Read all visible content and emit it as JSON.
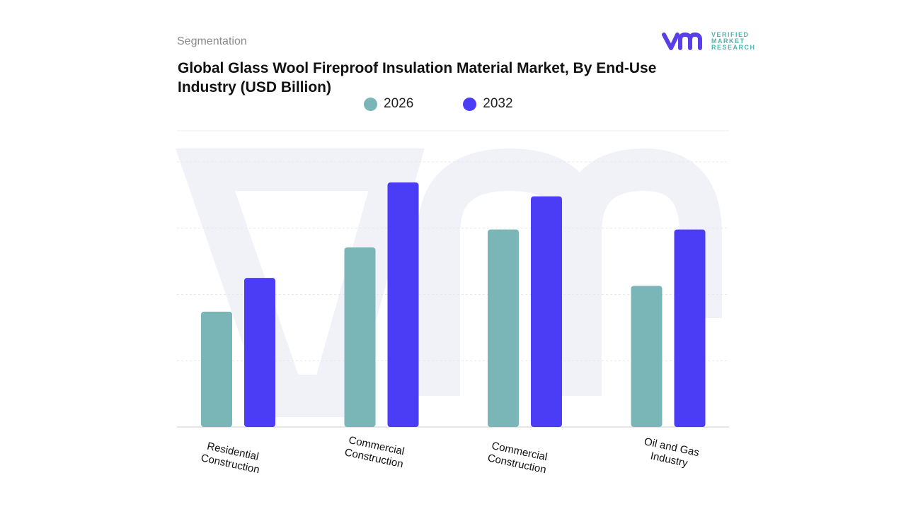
{
  "header": {
    "section": "Segmentation",
    "title": "Global  Glass Wool Fireproof Insulation Material Market, By End-Use Industry (USD Billion)"
  },
  "logo": {
    "line1": "VERIFIED",
    "line2": "MARKET",
    "line3": "RESEARCH"
  },
  "chart_data": {
    "type": "bar",
    "title": "Global  Glass Wool Fireproof Insulation Material Market, By End-Use Industry (USD Billion)",
    "categories": [
      "Residential Construction",
      "Commercial Construction",
      "Commercial Construction",
      "Oil and Gas Industry"
    ],
    "series": [
      {
        "name": "2026",
        "color": "#7ab5b8",
        "values": [
          1.74,
          2.71,
          2.98,
          2.13
        ]
      },
      {
        "name": "2032",
        "color": "#4b3cf5",
        "values": [
          2.25,
          3.69,
          3.48,
          2.98
        ]
      }
    ],
    "ylim": [
      0,
      4
    ],
    "grid": true,
    "y_tick_labels_shown": false,
    "legend": "top-center"
  }
}
